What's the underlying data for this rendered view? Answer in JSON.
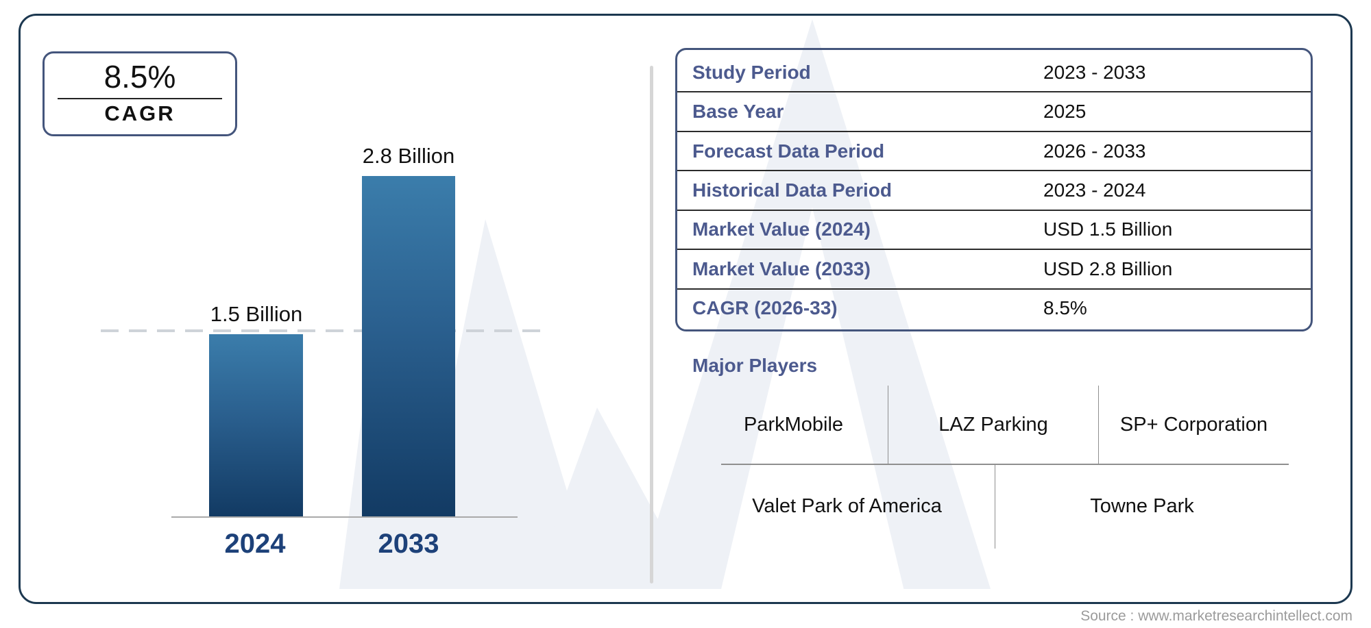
{
  "cagr_badge": {
    "value": "8.5%",
    "label": "CAGR"
  },
  "chart_data": {
    "type": "bar",
    "title": "",
    "categories": [
      "2024",
      "2033"
    ],
    "values": [
      1.5,
      2.8
    ],
    "unit": "USD Billion",
    "value_labels": [
      "1.5 Billion",
      "2.8 Billion"
    ],
    "ylim": [
      0,
      2.8
    ],
    "reference_line": {
      "value": 1.5,
      "style": "dashed"
    },
    "grid": "off",
    "legend": "none",
    "cagr": "8.5%"
  },
  "info_table": {
    "rows": [
      {
        "label": "Study Period",
        "value": "2023 - 2033"
      },
      {
        "label": "Base Year",
        "value": "2025"
      },
      {
        "label": "Forecast Data Period",
        "value": "2026 - 2033"
      },
      {
        "label": "Historical Data Period",
        "value": "2023 - 2024"
      },
      {
        "label": "Market Value (2024)",
        "value": "USD 1.5 Billion"
      },
      {
        "label": "Market Value (2033)",
        "value": "USD 2.8 Billion"
      },
      {
        "label": "CAGR (2026-33)",
        "value": "8.5%"
      }
    ]
  },
  "major_players": {
    "heading": "Major Players",
    "row1": [
      "ParkMobile",
      "LAZ Parking",
      "SP+ Corporation"
    ],
    "row2": [
      "Valet Park of America",
      "Towne Park"
    ]
  },
  "source": "Source : www.marketresearchintellect.com",
  "colors": {
    "bar_top": "#3b7dab",
    "bar_bottom": "#123a63",
    "year_label": "#1d4179",
    "frame_border": "#1c3850",
    "box_border": "#44557c",
    "table_label": "#4c5a8e",
    "heading": "#4c5a8e",
    "divider_gray": "#8f8f8f",
    "dashed_line": "#ccd1d7",
    "source_text": "#9b9b9b",
    "watermark": "#eef1f6",
    "baseline": "#a9a9a9",
    "row_line": "#2b2b2b",
    "text_dark": "#111111",
    "split_gray": "#d6d6d6"
  }
}
